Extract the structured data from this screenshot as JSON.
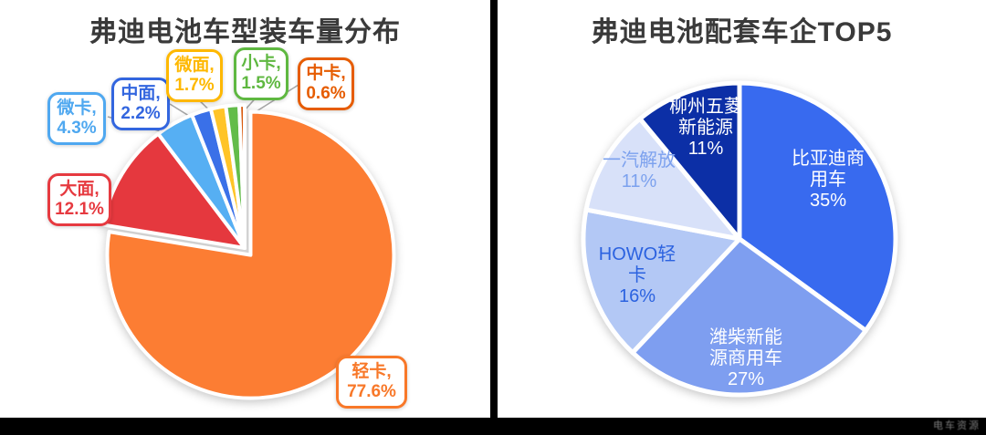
{
  "page": {
    "background": "#ffffff",
    "divider_color": "#000000",
    "bottom_bar_color": "#000000"
  },
  "watermark": {
    "text": "电车资源",
    "color": "#9a9a9a"
  },
  "chart_data": [
    {
      "type": "pie",
      "title": "弗迪电池车型装车量分布",
      "unit": "%",
      "direction": "clockwise",
      "start_angle_deg": 0,
      "label_style": "callout-boxes",
      "series": [
        {
          "label": "轻卡",
          "slug": "light-truck",
          "value": 77.6,
          "color": "#fc7d33",
          "label_color": "#f87829",
          "exploded": true
        },
        {
          "label": "大面",
          "slug": "large-van",
          "value": 12.1,
          "color": "#e5383e",
          "label_color": "#e63a40"
        },
        {
          "label": "微卡",
          "slug": "micro-truck",
          "value": 4.3,
          "color": "#56aff3",
          "label_color": "#4fa8f0"
        },
        {
          "label": "中面",
          "slug": "medium-van",
          "value": 2.2,
          "color": "#3a70e8",
          "label_color": "#3366df"
        },
        {
          "label": "微面",
          "slug": "micro-van",
          "value": 1.7,
          "color": "#ffc428",
          "label_color": "#feb800"
        },
        {
          "label": "小卡",
          "slug": "small-truck",
          "value": 1.5,
          "color": "#63bc4a",
          "label_color": "#5fb841"
        },
        {
          "label": "中卡",
          "slug": "medium-truck",
          "value": 0.6,
          "color": "#d8590d",
          "label_color": "#e65c00"
        }
      ]
    },
    {
      "type": "pie",
      "title": "弗迪电池配套车企TOP5",
      "unit": "%",
      "direction": "clockwise",
      "start_angle_deg": 0,
      "label_style": "inside",
      "series": [
        {
          "label": "比亚迪商用车",
          "slug": "byd-commercial",
          "value": 35,
          "color": "#386aef",
          "text_color": "#ffffff",
          "label_lines": [
            "比亚迪商",
            "用车",
            "35%"
          ]
        },
        {
          "label": "潍柴新能源商用车",
          "slug": "weichai-new-energy",
          "value": 27,
          "color": "#7e9ef0",
          "text_color": "#ffffff",
          "label_lines": [
            "潍柴新能",
            "源商用车",
            "27%"
          ]
        },
        {
          "label": "HOWO轻卡",
          "slug": "howo-light-truck",
          "value": 16,
          "color": "#b3c8f5",
          "text_color": "#2b62e0",
          "label_lines": [
            "HOWO轻",
            "卡",
            "16%"
          ]
        },
        {
          "label": "一汽解放",
          "slug": "faw-jiefang",
          "value": 11,
          "color": "#d8e1f9",
          "text_color": "#7ca1ee",
          "label_lines": [
            "一汽解放",
            "11%"
          ]
        },
        {
          "label": "柳州五菱新能源",
          "slug": "wuling-new-energy",
          "value": 11,
          "color": "#0c2fa6",
          "text_color": "#ffffff",
          "label_lines": [
            "柳州五菱",
            "新能源",
            "11%"
          ]
        }
      ]
    }
  ]
}
